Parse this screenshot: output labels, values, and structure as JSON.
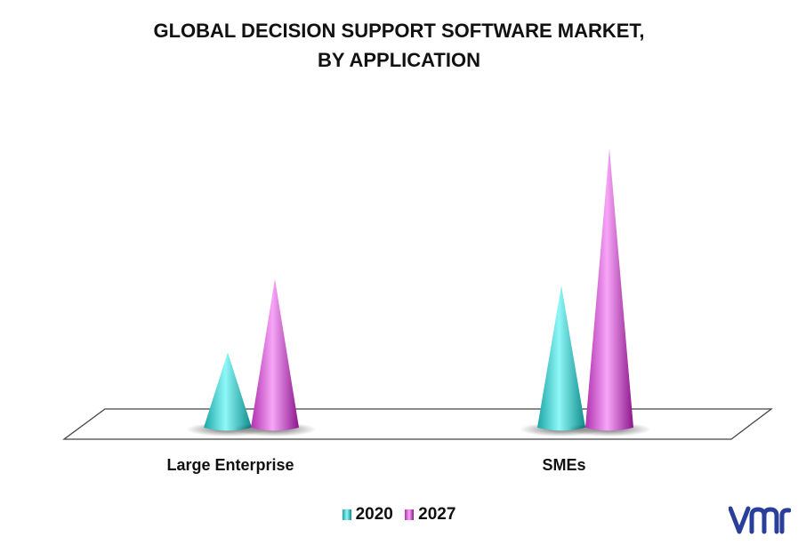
{
  "title_line1": "GLOBAL DECISION SUPPORT SOFTWARE MARKET,",
  "title_line2": "BY APPLICATION",
  "colors": {
    "s2020": "#40e0e0",
    "s2027": "#e060e0"
  },
  "chart_data": {
    "type": "bar",
    "categories": [
      "Large Enterprise",
      "SMEs"
    ],
    "series": [
      {
        "name": "2020",
        "values": [
          2.3,
          4.3
        ]
      },
      {
        "name": "2027",
        "values": [
          4.5,
          8.4
        ]
      }
    ],
    "ylim": [
      0,
      8.5
    ],
    "grid": false,
    "legend": "bottom"
  },
  "logo_text": "vmr"
}
